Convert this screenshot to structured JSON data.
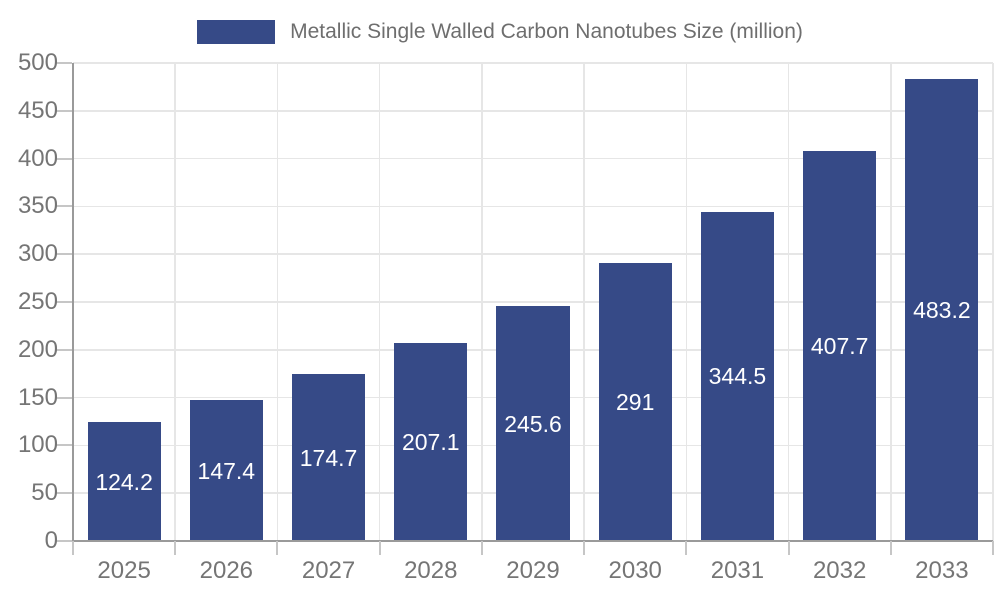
{
  "legend": {
    "label": "Metallic Single Walled Carbon Nanotubes Size (million)"
  },
  "chart_data": {
    "type": "bar",
    "title": "Metallic Single Walled Carbon Nanotubes Size (million)",
    "categories": [
      "2025",
      "2026",
      "2027",
      "2028",
      "2029",
      "2030",
      "2031",
      "2032",
      "2033"
    ],
    "values": [
      124.2,
      147.4,
      174.7,
      207.1,
      245.6,
      291,
      344.5,
      407.7,
      483.2
    ],
    "bar_labels": [
      "124.2",
      "147.4",
      "174.7",
      "207.1",
      "245.6",
      "291",
      "344.5",
      "407.7",
      "483.2"
    ],
    "xlabel": "",
    "ylabel": "",
    "ylim": [
      0,
      500
    ],
    "ytick_step": 50,
    "yticks": [
      "0",
      "50",
      "100",
      "150",
      "200",
      "250",
      "300",
      "350",
      "400",
      "450",
      "500"
    ],
    "grid": true,
    "legend_position": "top-center",
    "bar_label_position": "center-inside",
    "colors": {
      "bar": "#364a87",
      "bar_label": "#ffffff",
      "grid": "#e6e6e6",
      "axis": "#9a9a9a",
      "tick": "#c6c6c6",
      "tick_label": "#757575",
      "legend_text": "#6e6e6e",
      "background": "#ffffff"
    }
  }
}
